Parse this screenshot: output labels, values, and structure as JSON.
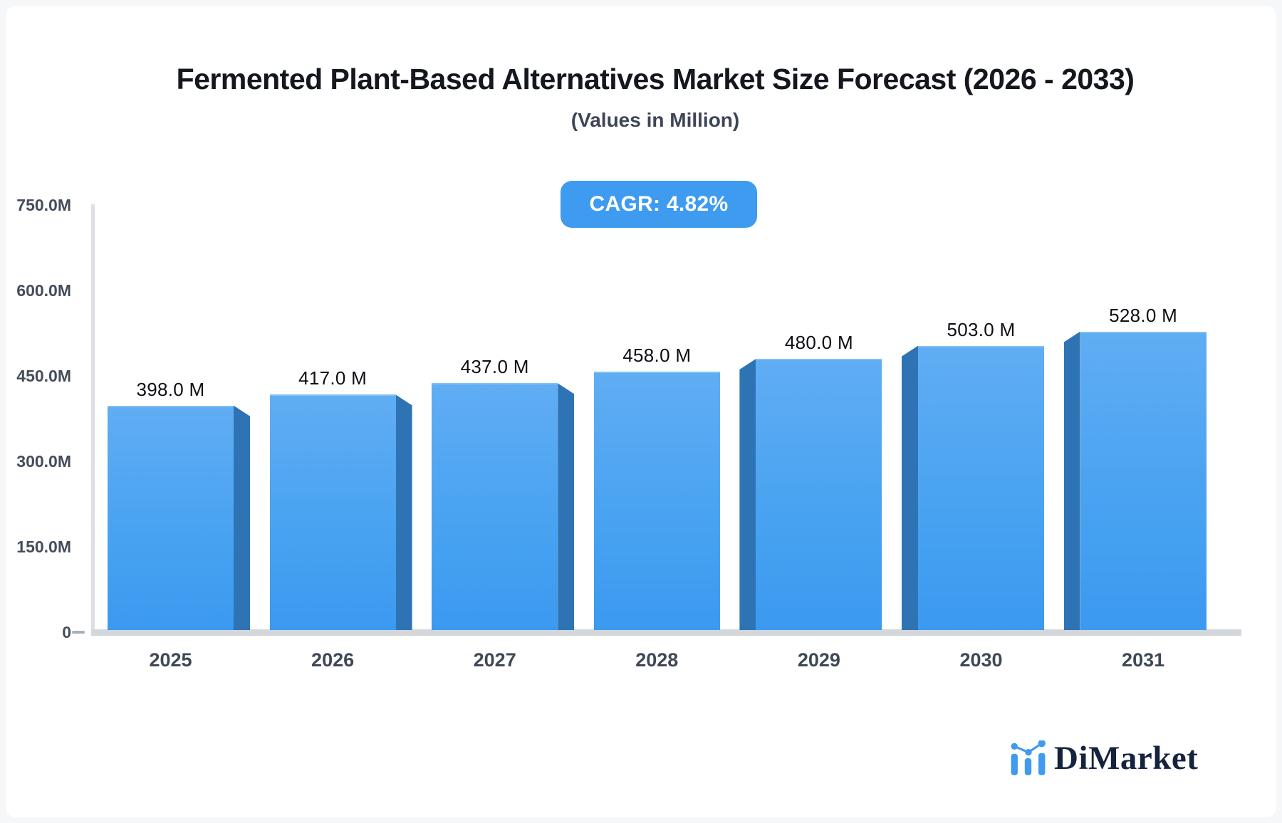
{
  "header": {
    "title": "Fermented Plant-Based Alternatives Market Size Forecast (2026 - 2033)",
    "subtitle": "(Values in Million)",
    "cagr_badge": "CAGR: 4.82%"
  },
  "brand": {
    "name": "DiMarket",
    "icon": "bar-chart-logo-icon"
  },
  "colors": {
    "badge_blue": "#3e9bf0",
    "bar_face_top": "#60adf3",
    "bar_face_bottom": "#3b99f0",
    "bar_side": "#2e74b4",
    "axis_gray": "#d3d7db",
    "title_text": "#14171d",
    "logo_navy": "#15233f",
    "logo_blue": "#3f9af0"
  },
  "chart_data": {
    "type": "bar",
    "title": "Fermented Plant-Based Alternatives Market Size Forecast (2026 - 2033)",
    "subtitle": "(Values in Million)",
    "cagr_percent": 4.82,
    "unit": "Million",
    "categories": [
      "2025",
      "2026",
      "2027",
      "2028",
      "2029",
      "2030",
      "2031"
    ],
    "values": [
      398,
      417,
      437,
      458,
      480,
      503,
      528
    ],
    "value_labels": [
      "398.0 M",
      "417.0 M",
      "437.0 M",
      "458.0 M",
      "480.0 M",
      "503.0 M",
      "528.0 M"
    ],
    "xlabel": "",
    "ylabel": "",
    "ylim": [
      0,
      750
    ],
    "grid": false,
    "legend": "none",
    "y_ticks": [
      {
        "label": "750.0M",
        "value": 750
      },
      {
        "label": "600.0M",
        "value": 600
      },
      {
        "label": "450.0M",
        "value": 450
      },
      {
        "label": "300.0M",
        "value": 300
      },
      {
        "label": "150.0M",
        "value": 150
      },
      {
        "label": "0",
        "value": 0
      }
    ]
  }
}
